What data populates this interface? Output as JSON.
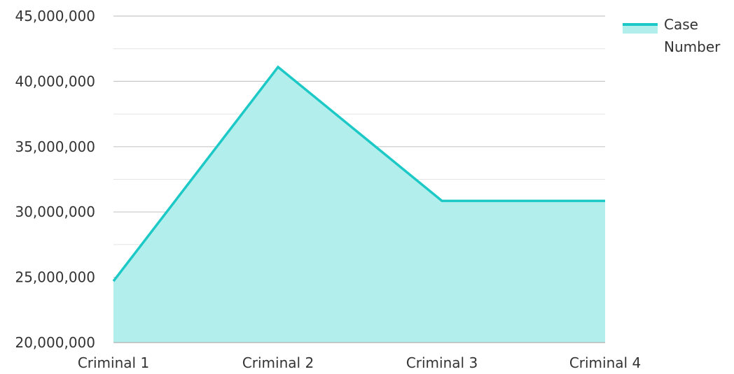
{
  "chart_data": {
    "type": "area",
    "categories": [
      "Criminal 1",
      "Criminal 2",
      "Criminal 3",
      "Criminal 4"
    ],
    "series": [
      {
        "name": "Case Number",
        "legend_lines": [
          "Case",
          "Number"
        ],
        "values": [
          24700000,
          41100000,
          30850000,
          30850000
        ],
        "line_color": "#1cc9c6",
        "fill_color": "#b2eeec"
      }
    ],
    "yticks": [
      "20,000,000",
      "25,000,000",
      "30,000,000",
      "35,000,000",
      "40,000,000",
      "45,000,000"
    ],
    "ylim": [
      20000000,
      45000000
    ],
    "grid": true,
    "legend": "top-right",
    "major_gridline_color": "#c8c8c8",
    "minor_gridline_color": "#e4e4e4"
  }
}
